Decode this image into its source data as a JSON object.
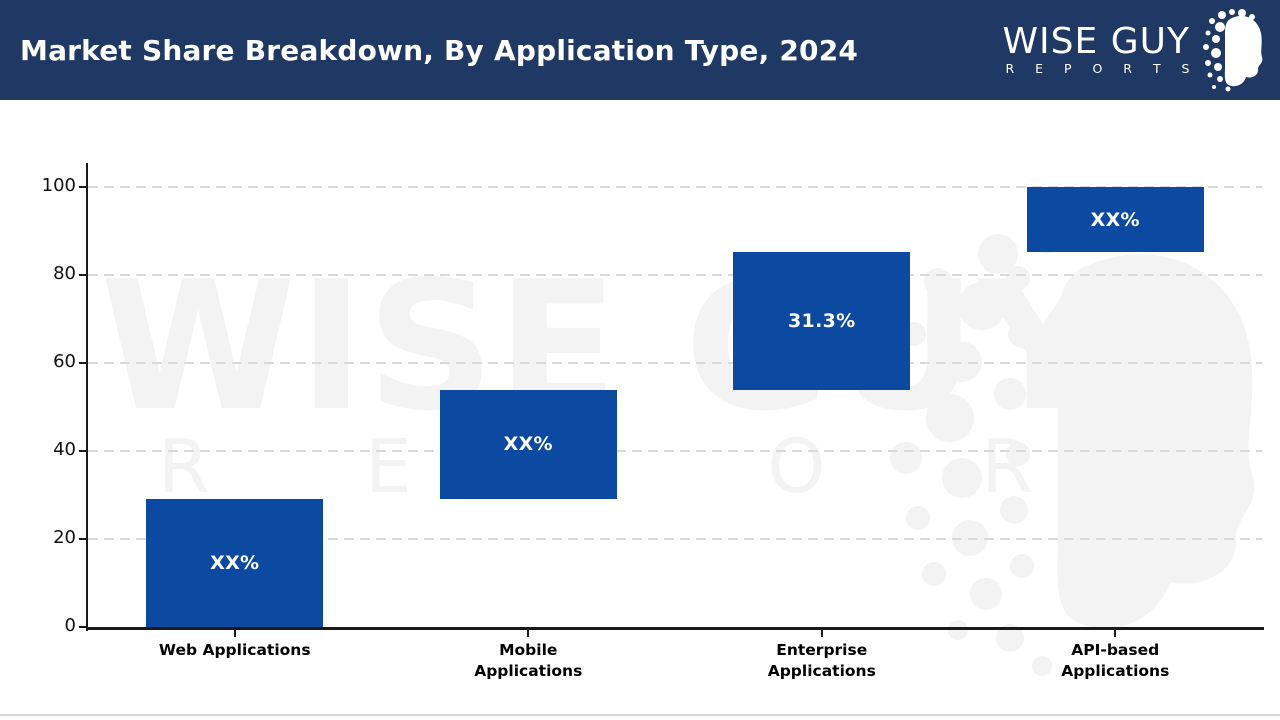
{
  "header": {
    "title": "Market Share Breakdown, By Application Type, 2024",
    "logo": {
      "wordmark": "WISE GUY",
      "subtext": "R E P O R T S"
    }
  },
  "watermark": {
    "wordmark": "WISE GUY",
    "subtext": "R E P O R T S"
  },
  "colors": {
    "header_bg": "#1f3864",
    "bar_fill": "#0c49a0",
    "bar_label_text": "#ffffff",
    "grid_line": "#d9d9d9",
    "axis_line": "#1a1a1a",
    "tick_label": "#111111",
    "watermark_gray": "#f3f3f3",
    "bottom_rule": "#d6d6d6"
  },
  "chart_data": {
    "type": "bar",
    "subtype": "floating-waterfall",
    "title": "Market Share Breakdown, By Application Type, 2024",
    "unit": "%",
    "categories": [
      "Web Applications",
      "Mobile\nApplications",
      "Enterprise\nApplications",
      "API-based\nApplications"
    ],
    "segments": [
      {
        "category": "Web Applications",
        "start": 0,
        "end": 29.2,
        "value_label": "XX%"
      },
      {
        "category": "Mobile Applications",
        "start": 29.2,
        "end": 53.9,
        "value_label": "XX%"
      },
      {
        "category": "Enterprise Applications",
        "start": 53.9,
        "end": 85.2,
        "value_label": "31.3%"
      },
      {
        "category": "API-based Applications",
        "start": 85.2,
        "end": 100,
        "value_label": "XX%"
      }
    ],
    "ylim": [
      0,
      100
    ],
    "yticks": [
      0,
      20,
      40,
      60,
      80,
      100
    ],
    "grid": "horizontal dashed",
    "legend": "none"
  }
}
